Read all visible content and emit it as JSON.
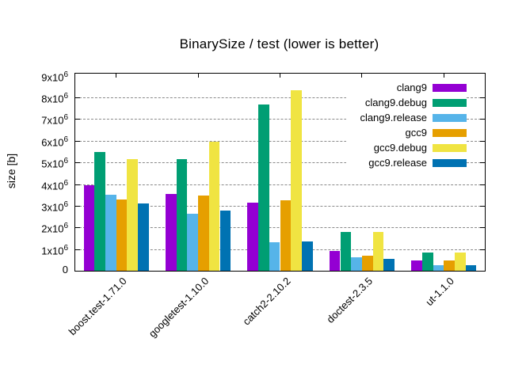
{
  "chart_data": {
    "type": "bar",
    "title": "BinarySize / test (lower is better)",
    "xlabel": "",
    "ylabel": "size [b]",
    "categories": [
      "boost.test-1.71.0",
      "googletest-1.10.0",
      "catch2-2.10.2",
      "doctest-2.3.5",
      "ut-1.1.0"
    ],
    "series": [
      {
        "name": "clang9",
        "color": "#9400d3",
        "values": [
          3950000,
          3540000,
          3160000,
          930000,
          480000
        ]
      },
      {
        "name": "clang9.debug",
        "color": "#009e73",
        "values": [
          5480000,
          5160000,
          7670000,
          1790000,
          840000
        ]
      },
      {
        "name": "clang9.release",
        "color": "#56b4e9",
        "values": [
          3500000,
          2630000,
          1310000,
          610000,
          260000
        ]
      },
      {
        "name": "gcc9",
        "color": "#e69f00",
        "values": [
          3290000,
          3480000,
          3240000,
          700000,
          465000
        ]
      },
      {
        "name": "gcc9.debug",
        "color": "#f0e442",
        "values": [
          5140000,
          5970000,
          8350000,
          1780000,
          840000
        ]
      },
      {
        "name": "gcc9.release",
        "color": "#0072b2",
        "values": [
          3100000,
          2770000,
          1350000,
          540000,
          270000
        ]
      }
    ],
    "ylim": [
      0,
      9000000
    ],
    "ytick_values": [
      0,
      1,
      2,
      3,
      4,
      5,
      6,
      7,
      8,
      9
    ],
    "ytick_suffix_base": "x10",
    "ytick_exponent": "6",
    "ytick_zero_label": "0",
    "grid": true,
    "legend_position": "top-right-inside",
    "colors": {
      "background": "#ffffff",
      "axis": "#000000",
      "grid": "#8a8a8a",
      "text": "#000000"
    }
  }
}
